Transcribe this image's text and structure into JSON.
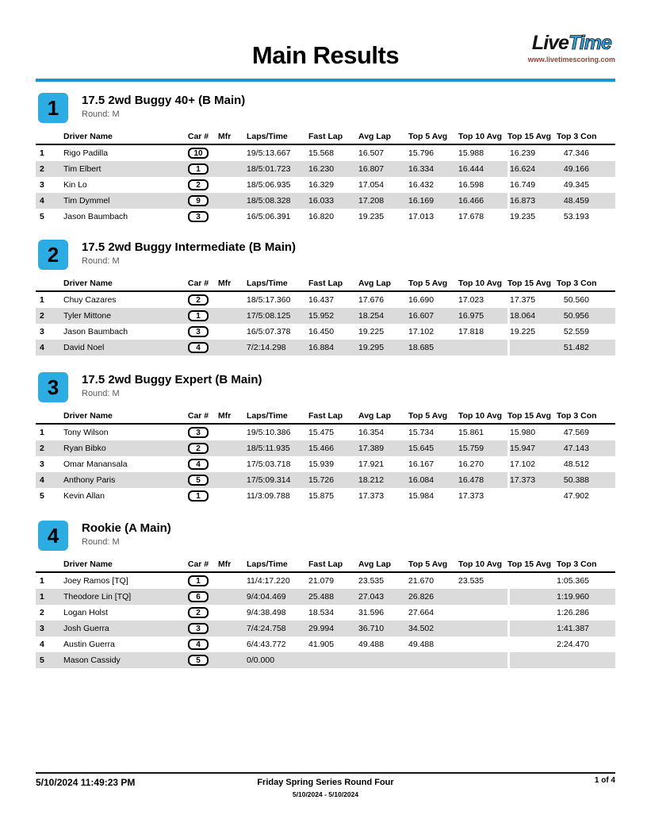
{
  "header": {
    "title": "Main Results",
    "logo": {
      "live": "Live",
      "time": "Time",
      "website": "www.livetimescoring.com"
    }
  },
  "columns": [
    "Driver Name",
    "Car #",
    "Mfr",
    "Laps/Time",
    "Fast Lap",
    "Avg Lap",
    "Top 5 Avg",
    "Top 10 Avg",
    "Top 15 Avg",
    "Top 3 Con"
  ],
  "sections": [
    {
      "number": "1",
      "title": "17.5 2wd Buggy 40+ (B Main)",
      "round": "Round: M",
      "rows": [
        {
          "pos": "1",
          "driver": "Rigo Padilla",
          "car": "10",
          "mfr": "",
          "laps_time": "19/5:13.667",
          "fast_lap": "15.568",
          "avg_lap": "16.507",
          "top5": "15.796",
          "top10": "15.988",
          "top15": "16.239",
          "top3con": "47.346"
        },
        {
          "pos": "2",
          "driver": "Tim Elbert",
          "car": "1",
          "mfr": "",
          "laps_time": "18/5:01.723",
          "fast_lap": "16.230",
          "avg_lap": "16.807",
          "top5": "16.334",
          "top10": "16.444",
          "top15": "16.624",
          "top3con": "49.166"
        },
        {
          "pos": "3",
          "driver": "Kin Lo",
          "car": "2",
          "mfr": "",
          "laps_time": "18/5:06.935",
          "fast_lap": "16.329",
          "avg_lap": "17.054",
          "top5": "16.432",
          "top10": "16.598",
          "top15": "16.749",
          "top3con": "49.345"
        },
        {
          "pos": "4",
          "driver": "Tim Dymmel",
          "car": "9",
          "mfr": "",
          "laps_time": "18/5:08.328",
          "fast_lap": "16.033",
          "avg_lap": "17.208",
          "top5": "16.169",
          "top10": "16.466",
          "top15": "16.873",
          "top3con": "48.459"
        },
        {
          "pos": "5",
          "driver": "Jason Baumbach",
          "car": "3",
          "mfr": "",
          "laps_time": "16/5:06.391",
          "fast_lap": "16.820",
          "avg_lap": "19.235",
          "top5": "17.013",
          "top10": "17.678",
          "top15": "19.235",
          "top3con": "53.193"
        }
      ]
    },
    {
      "number": "2",
      "title": "17.5 2wd Buggy Intermediate (B Main)",
      "round": "Round: M",
      "rows": [
        {
          "pos": "1",
          "driver": "Chuy Cazares",
          "car": "2",
          "mfr": "",
          "laps_time": "18/5:17.360",
          "fast_lap": "16.437",
          "avg_lap": "17.676",
          "top5": "16.690",
          "top10": "17.023",
          "top15": "17.375",
          "top3con": "50.560"
        },
        {
          "pos": "2",
          "driver": "Tyler Mittone",
          "car": "1",
          "mfr": "",
          "laps_time": "17/5:08.125",
          "fast_lap": "15.952",
          "avg_lap": "18.254",
          "top5": "16.607",
          "top10": "16.975",
          "top15": "18.064",
          "top3con": "50.956"
        },
        {
          "pos": "3",
          "driver": "Jason Baumbach",
          "car": "3",
          "mfr": "",
          "laps_time": "16/5:07.378",
          "fast_lap": "16.450",
          "avg_lap": "19.225",
          "top5": "17.102",
          "top10": "17.818",
          "top15": "19.225",
          "top3con": "52.559"
        },
        {
          "pos": "4",
          "driver": "David Noel",
          "car": "4",
          "mfr": "",
          "laps_time": "7/2:14.298",
          "fast_lap": "16.884",
          "avg_lap": "19.295",
          "top5": "18.685",
          "top10": "",
          "top15": "",
          "top3con": "51.482"
        }
      ]
    },
    {
      "number": "3",
      "title": "17.5 2wd Buggy Expert (B Main)",
      "round": "Round: M",
      "rows": [
        {
          "pos": "1",
          "driver": "Tony Wilson",
          "car": "3",
          "mfr": "",
          "laps_time": "19/5:10.386",
          "fast_lap": "15.475",
          "avg_lap": "16.354",
          "top5": "15.734",
          "top10": "15.861",
          "top15": "15.980",
          "top3con": "47.569"
        },
        {
          "pos": "2",
          "driver": "Ryan Bibko",
          "car": "2",
          "mfr": "",
          "laps_time": "18/5:11.935",
          "fast_lap": "15.466",
          "avg_lap": "17.389",
          "top5": "15.645",
          "top10": "15.759",
          "top15": "15.947",
          "top3con": "47.143"
        },
        {
          "pos": "3",
          "driver": "Omar Manansala",
          "car": "4",
          "mfr": "",
          "laps_time": "17/5:03.718",
          "fast_lap": "15.939",
          "avg_lap": "17.921",
          "top5": "16.167",
          "top10": "16.270",
          "top15": "17.102",
          "top3con": "48.512"
        },
        {
          "pos": "4",
          "driver": "Anthony Paris",
          "car": "5",
          "mfr": "",
          "laps_time": "17/5:09.314",
          "fast_lap": "15.726",
          "avg_lap": "18.212",
          "top5": "16.084",
          "top10": "16.478",
          "top15": "17.373",
          "top3con": "50.388"
        },
        {
          "pos": "5",
          "driver": "Kevin Allan",
          "car": "1",
          "mfr": "",
          "laps_time": "11/3:09.788",
          "fast_lap": "15.875",
          "avg_lap": "17.373",
          "top5": "15.984",
          "top10": "17.373",
          "top15": "",
          "top3con": "47.902"
        }
      ]
    },
    {
      "number": "4",
      "title": "Rookie (A Main)",
      "round": "Round: M",
      "rows": [
        {
          "pos": "1",
          "driver": "Joey Ramos [TQ]",
          "car": "1",
          "mfr": "",
          "laps_time": "11/4:17.220",
          "fast_lap": "21.079",
          "avg_lap": "23.535",
          "top5": "21.670",
          "top10": "23.535",
          "top15": "",
          "top3con": "1:05.365"
        },
        {
          "pos": "1",
          "driver": "Theodore Lin [TQ]",
          "car": "6",
          "mfr": "",
          "laps_time": "9/4:04.469",
          "fast_lap": "25.488",
          "avg_lap": "27.043",
          "top5": "26.826",
          "top10": "",
          "top15": "",
          "top3con": "1:19.960"
        },
        {
          "pos": "2",
          "driver": "Logan Holst",
          "car": "2",
          "mfr": "",
          "laps_time": "9/4:38.498",
          "fast_lap": "18.534",
          "avg_lap": "31.596",
          "top5": "27.664",
          "top10": "",
          "top15": "",
          "top3con": "1:26.286"
        },
        {
          "pos": "3",
          "driver": "Josh Guerra",
          "car": "3",
          "mfr": "",
          "laps_time": "7/4:24.758",
          "fast_lap": "29.994",
          "avg_lap": "36.710",
          "top5": "34.502",
          "top10": "",
          "top15": "",
          "top3con": "1:41.387"
        },
        {
          "pos": "4",
          "driver": "Austin Guerra",
          "car": "4",
          "mfr": "",
          "laps_time": "6/4:43.772",
          "fast_lap": "41.905",
          "avg_lap": "49.488",
          "top5": "49.488",
          "top10": "",
          "top15": "",
          "top3con": "2:24.470"
        },
        {
          "pos": "5",
          "driver": "Mason Cassidy",
          "car": "5",
          "mfr": "",
          "laps_time": "0/0.000",
          "fast_lap": "",
          "avg_lap": "",
          "top5": "",
          "top10": "",
          "top15": "",
          "top3con": ""
        }
      ]
    }
  ],
  "footer": {
    "printed": "5/10/2024 11:49:23 PM",
    "series": "Friday Spring Series Round Four",
    "date_range": "5/10/2024 - 5/10/2024",
    "page": "1 of 4"
  },
  "colors": {
    "accent_rule_blue": "#1B96D2",
    "section_badge_cyan": "#2BACE3",
    "row_stripe_gray": "#DBDBDB",
    "logo_time_blue": "#2BA3E0",
    "website_red": "#9A4136"
  }
}
